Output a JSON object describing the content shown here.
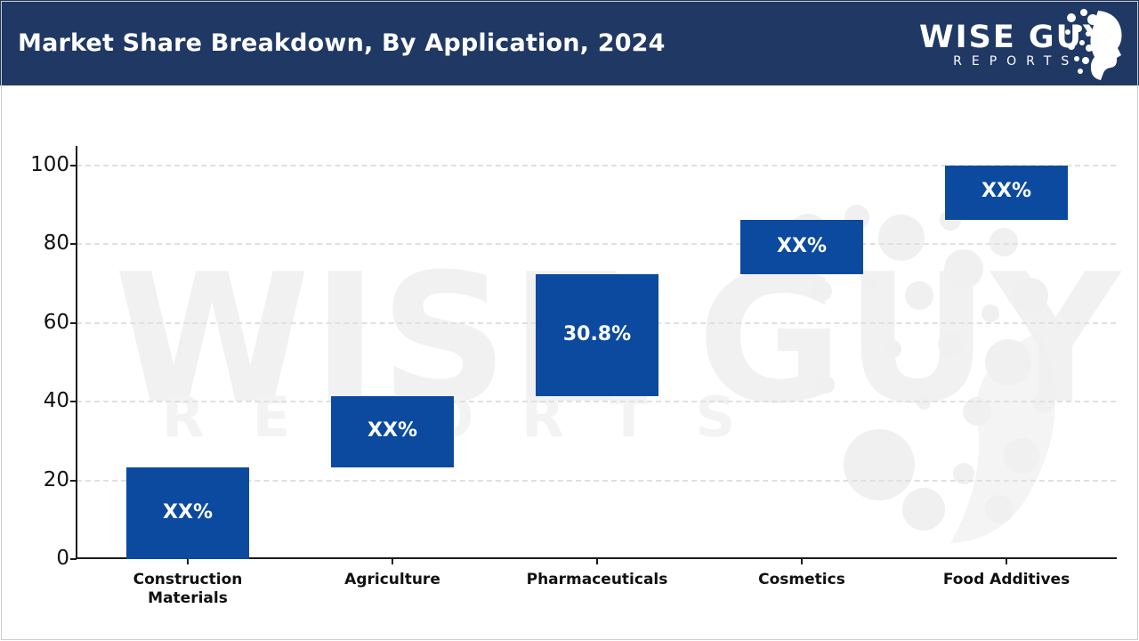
{
  "header": {
    "title": "Market Share Breakdown, By Application, 2024",
    "background_color": "#1F3864",
    "logo": {
      "line1": "WISE GUY",
      "line2": "REPORTS"
    }
  },
  "watermark": {
    "line1": "WISE GUY",
    "line2": "REPORTS"
  },
  "chart_data": {
    "type": "bar",
    "subtype": "waterfall",
    "title": "Market Share Breakdown, By Application, 2024",
    "categories": [
      "Construction Materials",
      "Agriculture",
      "Pharmaceuticals",
      "Cosmetics",
      "Food Additives"
    ],
    "bars": [
      {
        "category": "Construction Materials",
        "start": 0,
        "end": 23.2,
        "label": "XX%"
      },
      {
        "category": "Agriculture",
        "start": 23.2,
        "end": 41.5,
        "label": "XX%"
      },
      {
        "category": "Pharmaceuticals",
        "start": 41.5,
        "end": 72.3,
        "label": "30.8%"
      },
      {
        "category": "Cosmetics",
        "start": 72.3,
        "end": 86.2,
        "label": "XX%"
      },
      {
        "category": "Food Additives",
        "start": 86.2,
        "end": 100,
        "label": "XX%"
      }
    ],
    "xlabel": "",
    "ylabel": "",
    "ylim": [
      0,
      105
    ],
    "yticks": [
      0,
      20,
      40,
      60,
      80,
      100
    ],
    "grid": "horizontal-dashed",
    "legend": "none",
    "bar_color": "#0B4A9F",
    "bar_label_color": "#ffffff",
    "axis_color": "#1a1a1a",
    "grid_color": "#e0e0e0"
  }
}
